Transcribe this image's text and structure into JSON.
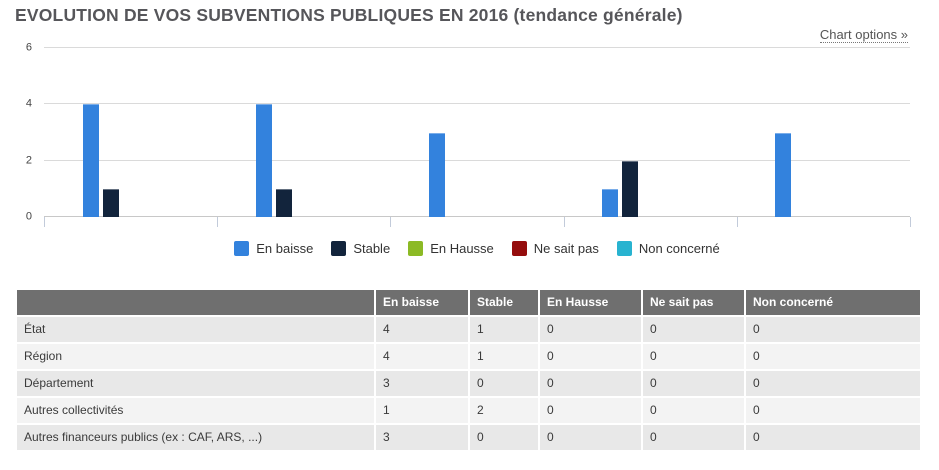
{
  "header": {
    "title": "EVOLUTION DE VOS SUBVENTIONS PUBLIQUES EN 2016 (tendance générale)",
    "chart_options_label": "Chart options »"
  },
  "colors": {
    "en_baisse": "#3382dd",
    "stable": "#12243c",
    "en_hausse": "#8cba25",
    "ne_sait_pas": "#950d0d",
    "non_concerne": "#28b3d0",
    "table_header_bg": "#6f6f6f",
    "row_odd_bg": "#e8e8e8",
    "row_even_bg": "#f3f3f3"
  },
  "chart_data": {
    "type": "bar",
    "title": "EVOLUTION DE VOS SUBVENTIONS PUBLIQUES EN 2016 (tendance générale)",
    "categories": [
      "État",
      "Région",
      "Département",
      "Autres collectivités",
      "Autres financeurs publics (ex : CAF, ARS, ...)"
    ],
    "series": [
      {
        "name": "En baisse",
        "color": "#3382dd",
        "values": [
          4,
          4,
          3,
          1,
          3
        ]
      },
      {
        "name": "Stable",
        "color": "#12243c",
        "values": [
          1,
          1,
          0,
          2,
          0
        ]
      },
      {
        "name": "En Hausse",
        "color": "#8cba25",
        "values": [
          0,
          0,
          0,
          0,
          0
        ]
      },
      {
        "name": "Ne sait pas",
        "color": "#950d0d",
        "values": [
          0,
          0,
          0,
          0,
          0
        ]
      },
      {
        "name": "Non concerné",
        "color": "#28b3d0",
        "values": [
          0,
          0,
          0,
          0,
          0
        ]
      }
    ],
    "xlabel": "",
    "ylabel": "",
    "ylim": [
      0,
      6
    ],
    "yticks": [
      0,
      2,
      4,
      6
    ],
    "grid": true,
    "legend_position": "bottom",
    "x_tick_labels_visible": false
  },
  "table": {
    "columns": [
      "",
      "En baisse",
      "Stable",
      "En Hausse",
      "Ne sait pas",
      "Non concerné"
    ],
    "rows": [
      {
        "label": "État",
        "values": [
          "4",
          "1",
          "0",
          "0",
          "0"
        ]
      },
      {
        "label": "Région",
        "values": [
          "4",
          "1",
          "0",
          "0",
          "0"
        ]
      },
      {
        "label": "Département",
        "values": [
          "3",
          "0",
          "0",
          "0",
          "0"
        ]
      },
      {
        "label": "Autres collectivités",
        "values": [
          "1",
          "2",
          "0",
          "0",
          "0"
        ]
      },
      {
        "label": "Autres financeurs publics (ex : CAF, ARS, ...)",
        "values": [
          "3",
          "0",
          "0",
          "0",
          "0"
        ]
      }
    ]
  }
}
